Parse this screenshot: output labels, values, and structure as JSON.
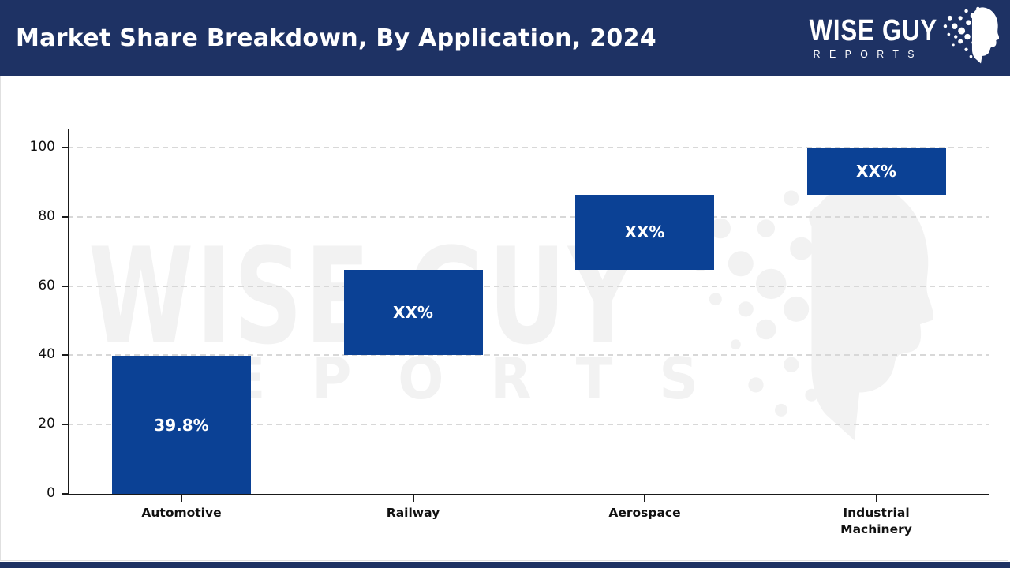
{
  "header": {
    "title": "Market Share Breakdown, By Application, 2024",
    "bg_color": "#1e3264",
    "logo": {
      "line1": "WISE GUY",
      "line2": "REPORTS"
    }
  },
  "watermark": {
    "line1": "WISE GUY",
    "line2": "REPORTS"
  },
  "chart_data": {
    "type": "bar",
    "subtype": "waterfall-floating-bars",
    "title": "Market Share Breakdown, By Application, 2024",
    "categories": [
      "Automotive",
      "Railway",
      "Aerospace",
      "Industrial\nMachinery"
    ],
    "bars": [
      {
        "category": "Automotive",
        "start": 0,
        "end": 39.8,
        "label": "39.8%"
      },
      {
        "category": "Railway",
        "start": 40,
        "end": 64.8,
        "label": "XX%"
      },
      {
        "category": "Aerospace",
        "start": 64.8,
        "end": 86.4,
        "label": "XX%"
      },
      {
        "category": "Industrial\nMachinery",
        "start": 86.4,
        "end": 99.8,
        "label": "XX%"
      }
    ],
    "xlabel": "",
    "ylabel": "",
    "yticks": [
      0,
      20,
      40,
      60,
      80,
      100
    ],
    "ylim": [
      0,
      105.4
    ],
    "grid": "horizontal-dashed",
    "legend": "none",
    "bar_color": "#0b4195",
    "grid_color": "#d8d8d8",
    "axis_color": "#1a1a1a",
    "value_label_color": "#ffffff"
  }
}
